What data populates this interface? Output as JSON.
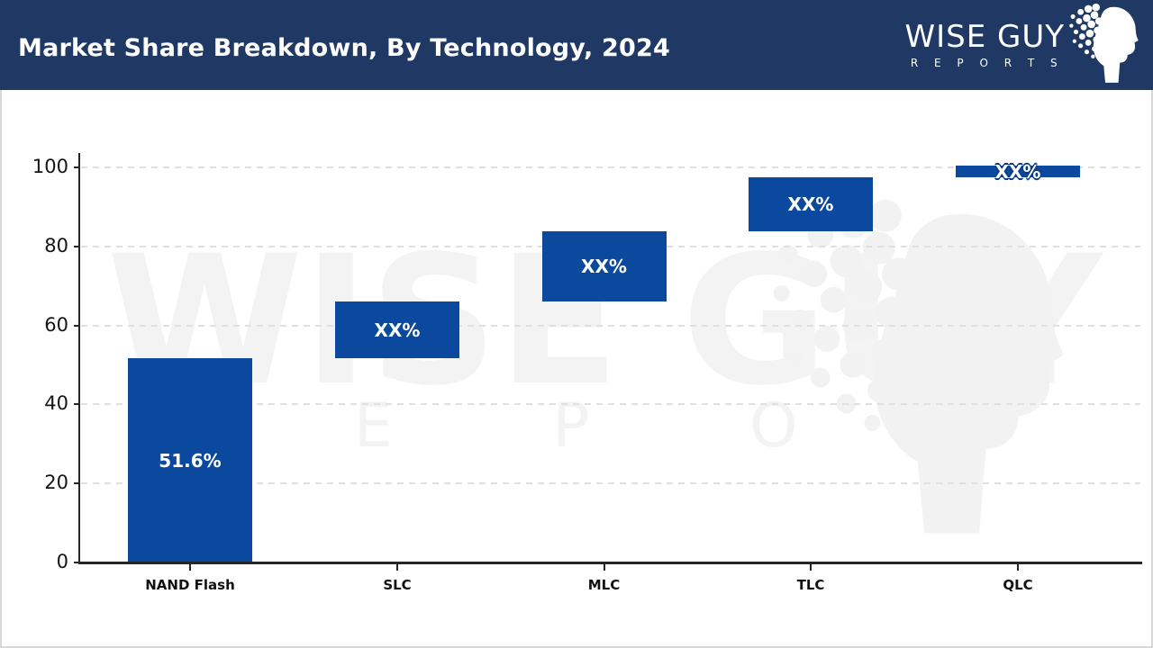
{
  "header": {
    "title": "Market Share Breakdown, By Technology, 2024",
    "bg_color": "#1f3864",
    "logo": {
      "line1": "WISE GUY",
      "line2": "R E P O R T S"
    }
  },
  "watermark": {
    "line1": "WISE GUY",
    "line2": "R E P O R T S"
  },
  "chart_data": {
    "type": "bar",
    "variant": "waterfall",
    "title": "Market Share Breakdown, By Technology, 2024",
    "categories": [
      "NAND Flash",
      "SLC",
      "MLC",
      "TLC",
      "QLC"
    ],
    "series": [
      {
        "name": "Market share (%)",
        "segments": [
          {
            "category": "NAND Flash",
            "start": 0,
            "end": 51.6,
            "label": "51.6%"
          },
          {
            "category": "SLC",
            "start": 51.6,
            "end": 66.1,
            "label": "XX%"
          },
          {
            "category": "MLC",
            "start": 66.1,
            "end": 83.8,
            "label": "XX%"
          },
          {
            "category": "TLC",
            "start": 83.8,
            "end": 97.4,
            "label": "XX%"
          },
          {
            "category": "QLC",
            "start": 97.4,
            "end": 100.5,
            "label": "XX%"
          }
        ]
      }
    ],
    "xlabel": "",
    "ylabel": "",
    "ylim": [
      0,
      100
    ],
    "yticks": [
      0,
      20,
      40,
      60,
      80,
      100
    ],
    "grid": {
      "horizontal": true,
      "style": "dashed",
      "color": "#e0e0e0"
    },
    "legend": "none",
    "bar_color": "#0b499e",
    "bar_label_color": "#ffffff",
    "axis_color": "#262626"
  }
}
